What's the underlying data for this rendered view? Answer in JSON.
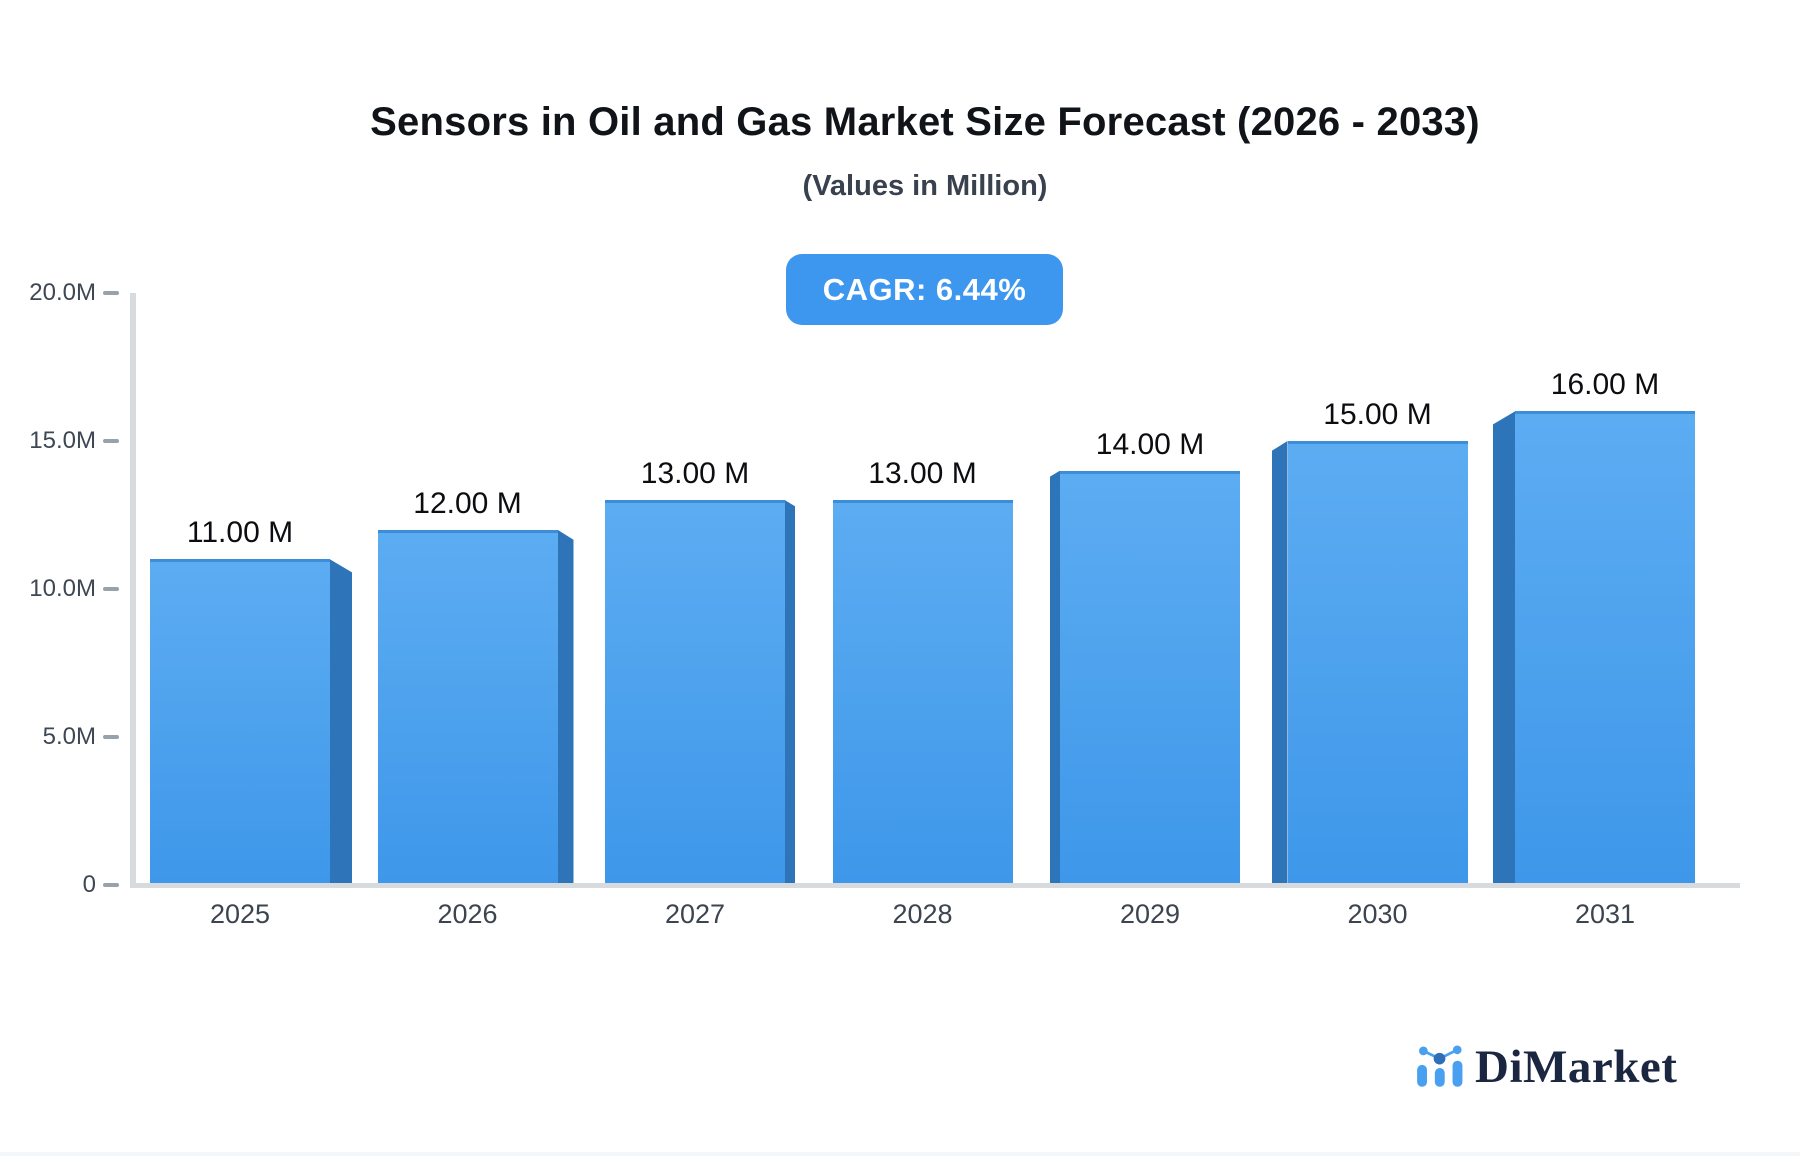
{
  "header": {
    "title": "Sensors in Oil and Gas Market Size Forecast (2026 - 2033)",
    "subtitle": "(Values in Million)"
  },
  "cagr_badge": {
    "label": "CAGR: 6.44%",
    "background_color": "#3e97ef",
    "text_color": "#ffffff"
  },
  "chart_data": {
    "type": "bar",
    "title": "Sensors in Oil and Gas Market Size Forecast (2026 - 2033)",
    "subtitle": "(Values in Million)",
    "annotation": "CAGR: 6.44%",
    "categories": [
      "2025",
      "2026",
      "2027",
      "2028",
      "2029",
      "2030",
      "2031"
    ],
    "values": [
      11,
      12,
      13,
      13,
      14,
      15,
      16
    ],
    "value_labels": [
      "11.00 M",
      "12.00 M",
      "13.00 M",
      "13.00 M",
      "14.00 M",
      "15.00 M",
      "16.00 M"
    ],
    "unit": "Million",
    "ylim": [
      0,
      20
    ],
    "ytick_values": [
      0,
      5,
      10,
      15,
      20
    ],
    "ytick_labels": [
      "0",
      "5.0M",
      "10.0M",
      "15.0M",
      "20.0M"
    ],
    "grid": false,
    "legend": false,
    "style": "3d-perspective-bars",
    "colors": {
      "bar_face_top": "#5cacf2",
      "bar_face": "#4ca1ed",
      "bar_face_bottom": "#3e97ea",
      "bar_edge": "#3d8ed9",
      "bar_side": "#2d74b9",
      "axis_line": "#d8dbde",
      "tick_mark": "#99a1aa",
      "axis_text": "#3e4754",
      "value_text": "#0b0d10"
    }
  },
  "branding": {
    "name": "DiMarket",
    "icon": "bar-chart-logo-icon",
    "text_color": "#1b2740",
    "icon_color": "#4aa0f0",
    "icon_accent": "#2e6fb7"
  }
}
